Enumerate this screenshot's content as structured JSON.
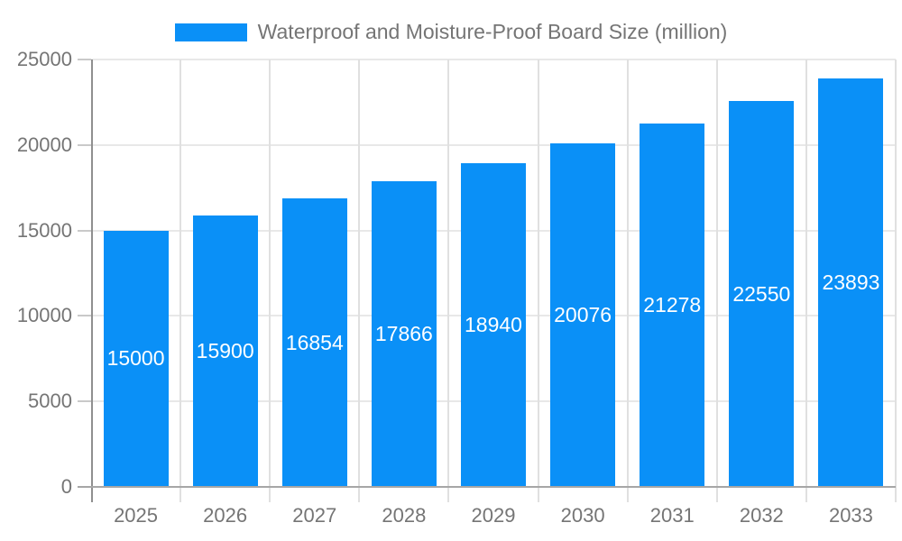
{
  "chart_data": {
    "type": "bar",
    "title": "Waterproof and Moisture-Proof Board Size (million)",
    "categories": [
      "2025",
      "2026",
      "2027",
      "2028",
      "2029",
      "2030",
      "2031",
      "2032",
      "2033"
    ],
    "values": [
      15000,
      15900,
      16854,
      17866,
      18940,
      20076,
      21278,
      22550,
      23893
    ],
    "xlabel": "",
    "ylabel": "",
    "ylim": [
      0,
      25000
    ],
    "yticks": [
      0,
      5000,
      10000,
      15000,
      20000,
      25000
    ],
    "grid": true,
    "legend_position": "top",
    "colors": {
      "bar": "#0a90f7",
      "value_label": "#ffffff",
      "axis_text": "#757575",
      "gridline": "#e8e8e8",
      "separator": "#e0e0e0",
      "tick": "#c9c9c9",
      "y_axis_line": "#8f8f8f",
      "x_axis_line": "#a6a6a6",
      "background": "#ffffff"
    }
  }
}
